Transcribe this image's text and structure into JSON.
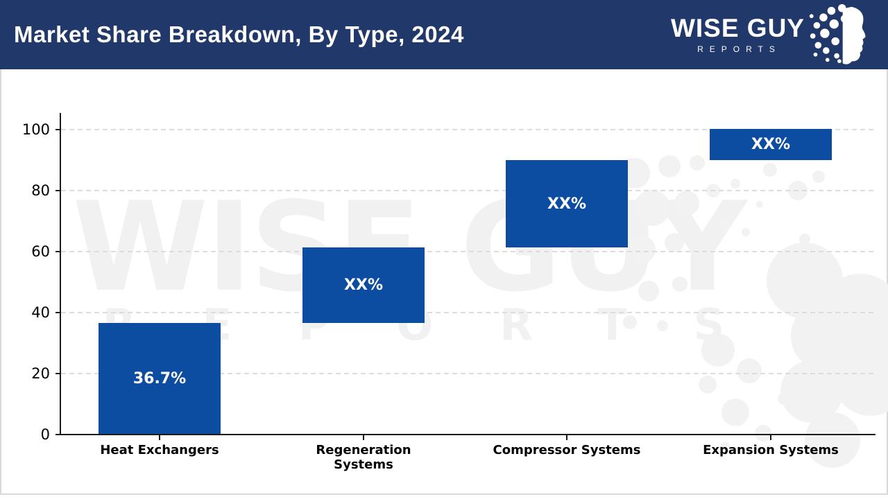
{
  "header": {
    "title": "Market Share Breakdown, By Type, 2024",
    "bg_color": "#21386b",
    "logo": {
      "line1": "WISE GUY",
      "line2": "REPORTS"
    }
  },
  "watermark": {
    "line1": "WISE GUY",
    "line2": "REPORTS"
  },
  "chart_data": {
    "type": "bar",
    "subtype": "waterfall",
    "title": "Market Share Breakdown, By Type, 2024",
    "categories": [
      "Heat Exchangers",
      "Regeneration Systems",
      "Compressor Systems",
      "Expansion Systems"
    ],
    "segments": [
      {
        "category": "Heat Exchangers",
        "label_lines": [
          "Heat Exchangers"
        ],
        "start": 0,
        "end": 36.7,
        "label": "36.7%"
      },
      {
        "category": "Regeneration Systems",
        "label_lines": [
          "Regeneration",
          "Systems"
        ],
        "start": 36.7,
        "end": 61.4,
        "label": "XX%"
      },
      {
        "category": "Compressor Systems",
        "label_lines": [
          "Compressor Systems"
        ],
        "start": 61.4,
        "end": 89.9,
        "label": "XX%"
      },
      {
        "category": "Expansion Systems",
        "label_lines": [
          "Expansion Systems"
        ],
        "start": 89.9,
        "end": 100.2,
        "label": "XX%"
      }
    ],
    "ylim": [
      0,
      105
    ],
    "yticks": [
      0,
      20,
      40,
      60,
      80,
      100
    ],
    "grid": "dashed-horizontal",
    "legend": "none",
    "bar_color": "#0c4da2",
    "bar_label_color": "#ffffff",
    "axis_color": "#1a1a1a",
    "gridline_color": "#dcdcdc"
  }
}
